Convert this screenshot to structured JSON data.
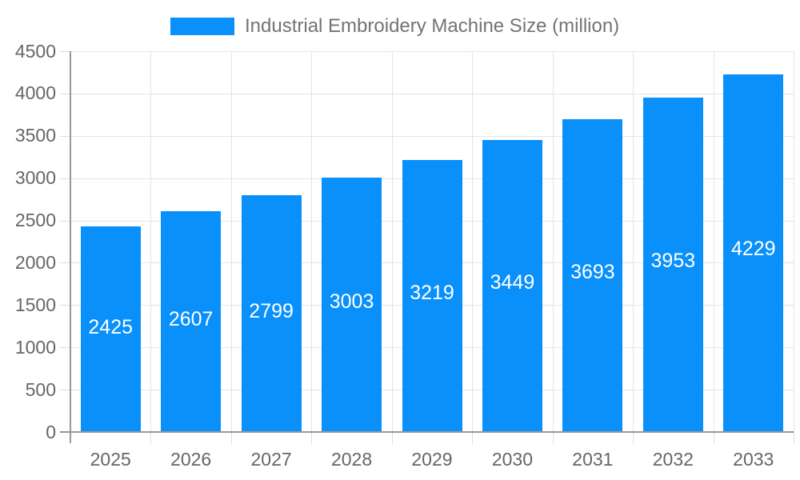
{
  "legend": {
    "label": "Industrial Embroidery Machine Size (million)",
    "swatch_color": "#0A90FB"
  },
  "chart_data": {
    "type": "bar",
    "title": "Industrial Embroidery Machine Size (million)",
    "series_name": "Industrial Embroidery Machine Size (million)",
    "categories": [
      "2025",
      "2026",
      "2027",
      "2028",
      "2029",
      "2030",
      "2031",
      "2032",
      "2033"
    ],
    "values": [
      2425,
      2607,
      2799,
      3003,
      3219,
      3449,
      3693,
      3953,
      4229
    ],
    "xlabel": "",
    "ylabel": "",
    "ylim": [
      0,
      4500
    ],
    "ytick_step": 500,
    "yticks": [
      0,
      500,
      1000,
      1500,
      2000,
      2500,
      3000,
      3500,
      4000,
      4500
    ],
    "grid": true,
    "legend_position": "top",
    "bar_color": "#0A90FB",
    "bar_label_color": "#ffffff",
    "axis_text_color": "#666666",
    "grid_color": "#e4e4e4",
    "axis_line_color": "#989898"
  }
}
